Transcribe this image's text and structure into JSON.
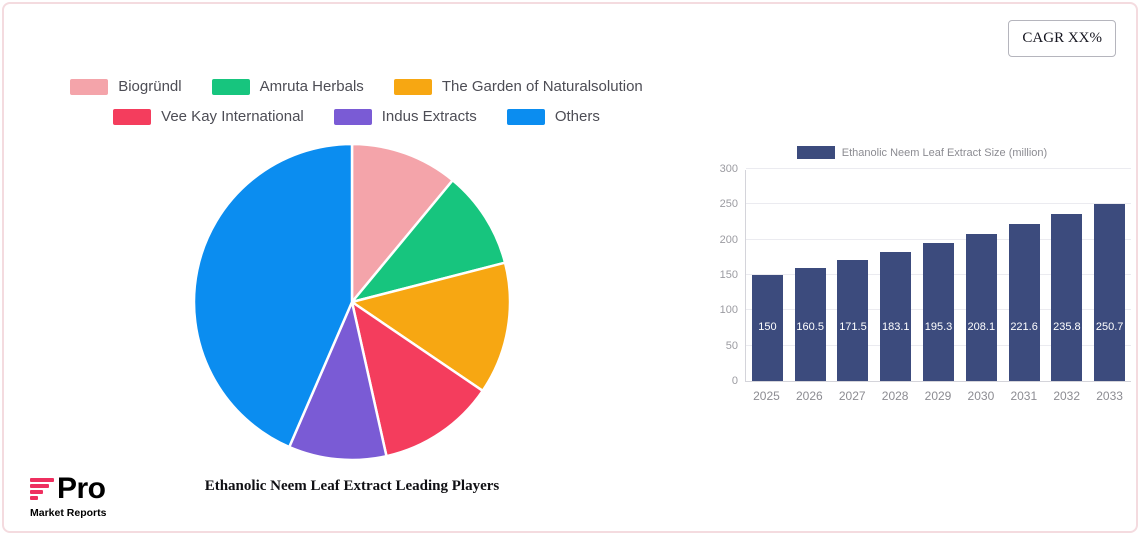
{
  "header": {
    "cagr_label": "CAGR XX%"
  },
  "logo": {
    "title": "Pro",
    "subtitle": "Market Reports"
  },
  "chart_data": [
    {
      "type": "pie",
      "title": "Ethanolic Neem Leaf Extract Leading Players",
      "labels": [
        "Biogründl",
        "Amruta Herbals",
        "The Garden of Naturalsolution",
        "Vee Kay International",
        "Indus Extracts",
        "Others"
      ],
      "values": [
        11,
        10,
        13.5,
        12,
        10,
        43.5
      ],
      "colors": [
        "#f4a4aa",
        "#17c57e",
        "#f7a712",
        "#f43d5d",
        "#7a5bd5",
        "#0b8df0"
      ],
      "legend_position": "top",
      "start_angle_deg": 0,
      "units": "percent-estimated"
    },
    {
      "type": "bar",
      "title": "Ethanolic Neem Leaf Extract Size (million)",
      "categories": [
        "2025",
        "2026",
        "2027",
        "2028",
        "2029",
        "2030",
        "2031",
        "2032",
        "2033"
      ],
      "values": [
        150,
        160.5,
        171.5,
        183.1,
        195.3,
        208.1,
        221.6,
        235.8,
        250.7
      ],
      "ylim": [
        0,
        300
      ],
      "yticks": [
        0,
        50,
        100,
        150,
        200,
        250,
        300
      ],
      "bar_color": "#3c4b7d",
      "grid": true,
      "legend_position": "top",
      "value_labels": "inside-white"
    }
  ]
}
